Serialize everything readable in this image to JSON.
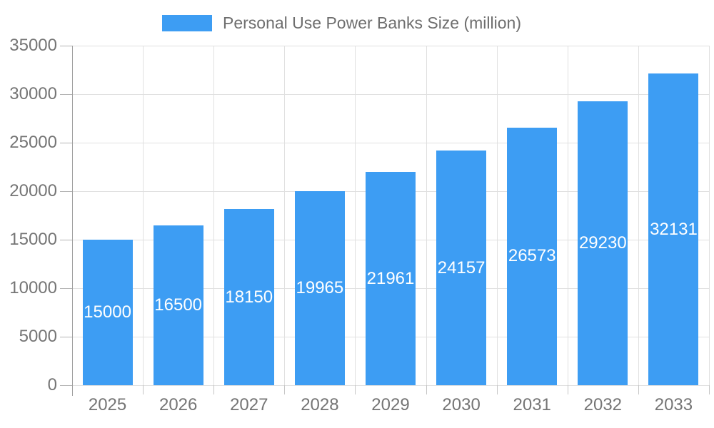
{
  "chart_data": {
    "type": "bar",
    "title": "Personal Use Power Banks Size (million)",
    "categories": [
      "2025",
      "2026",
      "2027",
      "2028",
      "2029",
      "2030",
      "2031",
      "2032",
      "2033"
    ],
    "values": [
      15000,
      16500,
      18150,
      19965,
      21961,
      24157,
      26573,
      29230,
      32131
    ],
    "xlabel": "",
    "ylabel": "",
    "ylim": [
      0,
      35000
    ],
    "ytick_step": 5000,
    "ytick_labels": [
      "0",
      "5000",
      "10000",
      "15000",
      "20000",
      "25000",
      "30000",
      "35000"
    ],
    "grid": true,
    "legend_position": "top",
    "annotations": "inside-middle",
    "colors": {
      "bar": "#3d9df3",
      "annotation_text": "#ffffff",
      "axis_label": "#757575",
      "legend_text": "#6e6e6e",
      "gridline": "#e0e0e0",
      "axis_line": "#9e9e9e",
      "background": "#ffffff"
    }
  }
}
